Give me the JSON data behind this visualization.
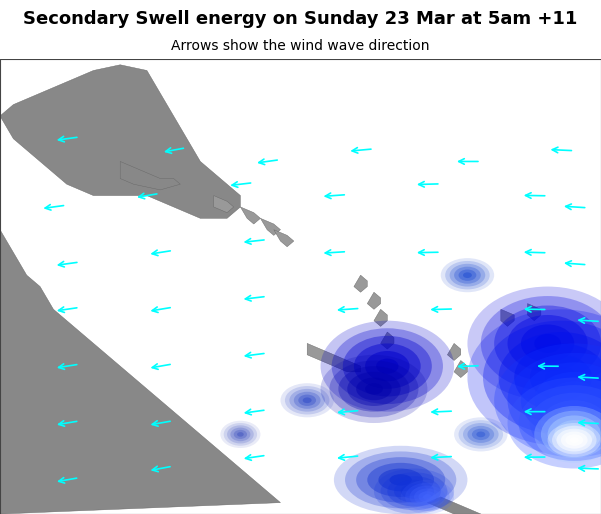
{
  "title": "Secondary Swell energy on Sunday 23 Mar at 5am +11",
  "subtitle": "Arrows show the wind wave direction",
  "title_fontsize": 13,
  "subtitle_fontsize": 10,
  "bg_color": "#000000",
  "header_bg": "#ffffff",
  "fig_width": 6.01,
  "fig_height": 5.14,
  "dpi": 100,
  "map_extent": [
    140,
    185,
    -35,
    5
  ],
  "arrow_color": "#00ffff",
  "land_color": "#888888",
  "ocean_color": "#000000"
}
